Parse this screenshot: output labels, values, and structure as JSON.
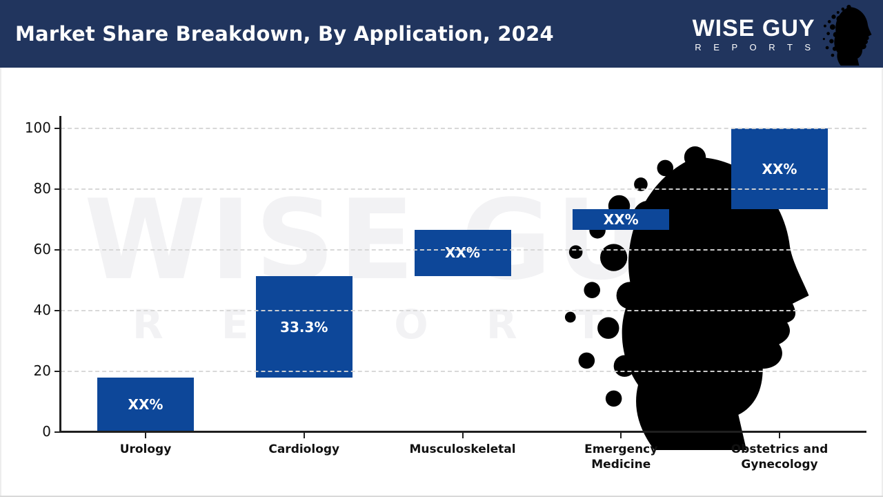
{
  "header": {
    "title": "Market Share Breakdown, By Application, 2024",
    "logo": {
      "name": "WISE GUY",
      "subtitle": "R E P O R T S"
    }
  },
  "watermark": {
    "line1": "WISE GUY",
    "line2": "R E P O R T S"
  },
  "colors": {
    "header_bg": "#21355e",
    "bar": "#0d4799",
    "grid": "#d6d6d6",
    "axis": "#1f1f1f",
    "watermark": "#f2f2f4",
    "tick_text": "#111111",
    "bar_label_text": "#ffffff"
  },
  "chart_data": {
    "type": "bar",
    "subtype": "floating-waterfall",
    "title": "Market Share Breakdown, By Application, 2024",
    "xlabel": "",
    "ylabel": "",
    "categories": [
      "Urology",
      "Cardiology",
      "Musculoskeletal",
      "Emergency Medicine",
      "Obstetrics and Gynecology"
    ],
    "segments": [
      {
        "category": "Urology",
        "start": 0,
        "end": 18,
        "label": "XX%"
      },
      {
        "category": "Cardiology",
        "start": 18,
        "end": 51.3,
        "label": "33.3%"
      },
      {
        "category": "Musculoskeletal",
        "start": 51.3,
        "end": 66.7,
        "label": "XX%"
      },
      {
        "category": "Emergency Medicine",
        "start": 66.7,
        "end": 73.3,
        "label": "XX%"
      },
      {
        "category": "Obstetrics and Gynecology",
        "start": 73.3,
        "end": 100,
        "label": "XX%"
      }
    ],
    "ylim": [
      0,
      104
    ],
    "yticks": [
      0,
      20,
      40,
      60,
      80,
      100
    ],
    "grid": "horizontal-dashed",
    "legend": "none",
    "bar_color": "#0d4799"
  }
}
